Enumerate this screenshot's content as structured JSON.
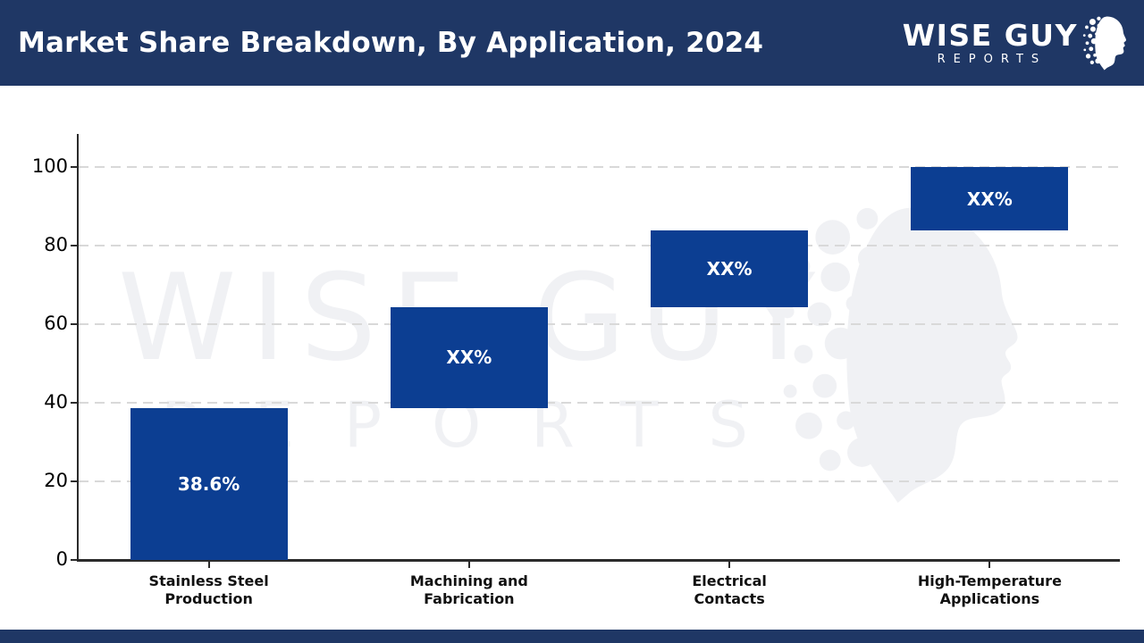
{
  "header": {
    "title": "Market Share Breakdown, By Application, 2024",
    "bg_color": "#1F3765",
    "logo": {
      "line1": "WISE GUY",
      "line2": "REPORTS"
    }
  },
  "watermark": {
    "line1": "WISE GUY",
    "line2": "REPORTS",
    "color": "#f0f1f4"
  },
  "footer": {
    "bg_color": "#1F3765"
  },
  "chart_data": {
    "type": "bar",
    "subtype": "waterfall",
    "title": "Market Share Breakdown, By Application, 2024",
    "xlabel": "",
    "ylabel": "",
    "ylim": [
      0,
      100
    ],
    "yticks": [
      0,
      20,
      40,
      60,
      80,
      100
    ],
    "grid": "horizontal-dashed",
    "legend": "none",
    "bar_color": "#0C3E92",
    "bar_label_color": "#ffffff",
    "segments": [
      {
        "category": "Stainless Steel\nProduction",
        "start": 0,
        "end": 38.6,
        "label": "38.6%",
        "value": 38.6
      },
      {
        "category": "Machining and\nFabrication",
        "start": 38.6,
        "end": 64.4,
        "label": "XX%",
        "value": 25.8
      },
      {
        "category": "Electrical\nContacts",
        "start": 64.4,
        "end": 83.8,
        "label": "XX%",
        "value": 19.4
      },
      {
        "category": "High-Temperature\nApplications",
        "start": 83.8,
        "end": 100,
        "label": "XX%",
        "value": 16.2
      }
    ]
  }
}
